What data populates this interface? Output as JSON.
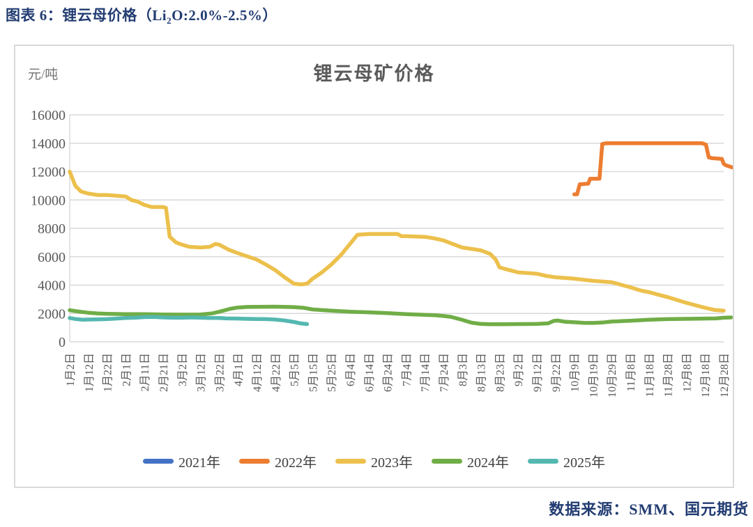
{
  "header": {
    "prefix": "图表 6：锂云母价格（Li",
    "subscript": "2",
    "suffix": "O:2.0%-2.5%）"
  },
  "source": {
    "text": "数据来源：SMM、国元期货"
  },
  "colors": {
    "accent_text": "#223C72",
    "grid": "#D9D9D9",
    "axis_text": "#595959",
    "title_text": "#5A5A5A"
  },
  "chart_data": {
    "type": "line",
    "title": "锂云母矿价格",
    "unit_label": "元/吨",
    "ylim": [
      0,
      16000
    ],
    "yticks": [
      0,
      2000,
      4000,
      6000,
      8000,
      10000,
      12000,
      14000,
      16000
    ],
    "grid": true,
    "legend_position": "bottom",
    "categories": [
      "1月2日",
      "1月12日",
      "1月22日",
      "2月1日",
      "2月11日",
      "2月21日",
      "3月2日",
      "3月12日",
      "3月22日",
      "4月1日",
      "4月12日",
      "4月22日",
      "5月5日",
      "5月15日",
      "5月25日",
      "6月4日",
      "6月14日",
      "6月24日",
      "7月4日",
      "7月14日",
      "7月24日",
      "8月3日",
      "8月13日",
      "8月23日",
      "9月2日",
      "9月12日",
      "9月22日",
      "10月9日",
      "10月19日",
      "10月29日",
      "11月8日",
      "11月18日",
      "11月28日",
      "12月8日",
      "12月18日",
      "12月28日"
    ],
    "series": [
      {
        "name": "2021年",
        "color": "#4472C4",
        "x": [],
        "values": []
      },
      {
        "name": "2022年",
        "color": "#ED7D31",
        "x": [
          27.0,
          27.15,
          27.3,
          27.75,
          27.85,
          28.35,
          28.5,
          28.7,
          33.85,
          34.05,
          34.2,
          34.35,
          34.9,
          35.0,
          35.1,
          35.45
        ],
        "values": [
          10400,
          10400,
          11100,
          11150,
          11500,
          11500,
          13950,
          14000,
          14000,
          13900,
          13000,
          12950,
          12900,
          12550,
          12450,
          12300
        ]
      },
      {
        "name": "2023年",
        "color": "#ECC04C",
        "x": [
          0,
          0.3,
          0.6,
          1,
          1.5,
          2,
          3,
          3.3,
          3.6,
          4,
          4.4,
          5,
          5.15,
          5.35,
          5.7,
          6,
          6.4,
          7,
          7.5,
          7.8,
          8,
          8.5,
          9,
          10,
          10.5,
          11,
          11.5,
          12,
          12.4,
          12.7,
          13,
          13.5,
          14,
          14.5,
          15,
          15.4,
          16,
          17,
          17.55,
          17.75,
          18,
          19,
          19.5,
          20,
          20.5,
          21,
          21.5,
          22,
          22.5,
          22.8,
          23,
          23.4,
          24,
          25,
          25.5,
          26,
          27,
          28,
          29,
          30,
          30.6,
          31,
          32,
          33,
          34,
          34.5,
          35
        ],
        "values": [
          12000,
          11000,
          10600,
          10450,
          10350,
          10350,
          10250,
          10000,
          9900,
          9650,
          9500,
          9500,
          9450,
          7400,
          7000,
          6850,
          6700,
          6650,
          6700,
          6900,
          6850,
          6500,
          6250,
          5800,
          5450,
          5050,
          4550,
          4100,
          4050,
          4100,
          4450,
          4900,
          5450,
          6100,
          6900,
          7550,
          7600,
          7600,
          7600,
          7450,
          7450,
          7400,
          7300,
          7150,
          6900,
          6650,
          6550,
          6450,
          6200,
          5800,
          5250,
          5100,
          4900,
          4800,
          4650,
          4550,
          4450,
          4300,
          4200,
          3850,
          3600,
          3500,
          3150,
          2750,
          2400,
          2250,
          2200
        ]
      },
      {
        "name": "2024年",
        "color": "#70AD47",
        "x": [
          0,
          0.5,
          1,
          1.5,
          2,
          3,
          4,
          5,
          6,
          7,
          7.6,
          8,
          8.6,
          9,
          9.5,
          10,
          11,
          12,
          12.5,
          13,
          14,
          15,
          16,
          17,
          18,
          19,
          19.6,
          20,
          20.4,
          21,
          21.5,
          22,
          22.5,
          23,
          24,
          25,
          25.6,
          25.9,
          26.1,
          26.5,
          27,
          27.5,
          28,
          28.5,
          29,
          29.5,
          30,
          30.5,
          31,
          32,
          33,
          34,
          34.6,
          35,
          35.4
        ],
        "values": [
          2230,
          2130,
          2050,
          2000,
          1980,
          1950,
          1950,
          1930,
          1920,
          1930,
          2000,
          2120,
          2330,
          2420,
          2460,
          2470,
          2480,
          2450,
          2400,
          2280,
          2200,
          2120,
          2080,
          2020,
          1950,
          1900,
          1870,
          1820,
          1760,
          1550,
          1350,
          1260,
          1240,
          1240,
          1250,
          1260,
          1300,
          1470,
          1500,
          1420,
          1380,
          1340,
          1330,
          1360,
          1430,
          1460,
          1480,
          1520,
          1560,
          1600,
          1620,
          1640,
          1650,
          1700,
          1720
        ]
      },
      {
        "name": "2025年",
        "color": "#54B8B0",
        "x": [
          0,
          0.35,
          0.7,
          1,
          1.5,
          2,
          2.5,
          3,
          3.5,
          4,
          4.5,
          5,
          5.5,
          6,
          6.5,
          7,
          7.5,
          8,
          8.4,
          9,
          9.5,
          10,
          10.5,
          11,
          11.5,
          12,
          12.35,
          12.7
        ],
        "values": [
          1680,
          1600,
          1560,
          1570,
          1580,
          1600,
          1640,
          1680,
          1700,
          1740,
          1750,
          1720,
          1700,
          1700,
          1720,
          1700,
          1680,
          1680,
          1650,
          1640,
          1620,
          1610,
          1600,
          1570,
          1500,
          1400,
          1300,
          1250
        ]
      }
    ]
  }
}
